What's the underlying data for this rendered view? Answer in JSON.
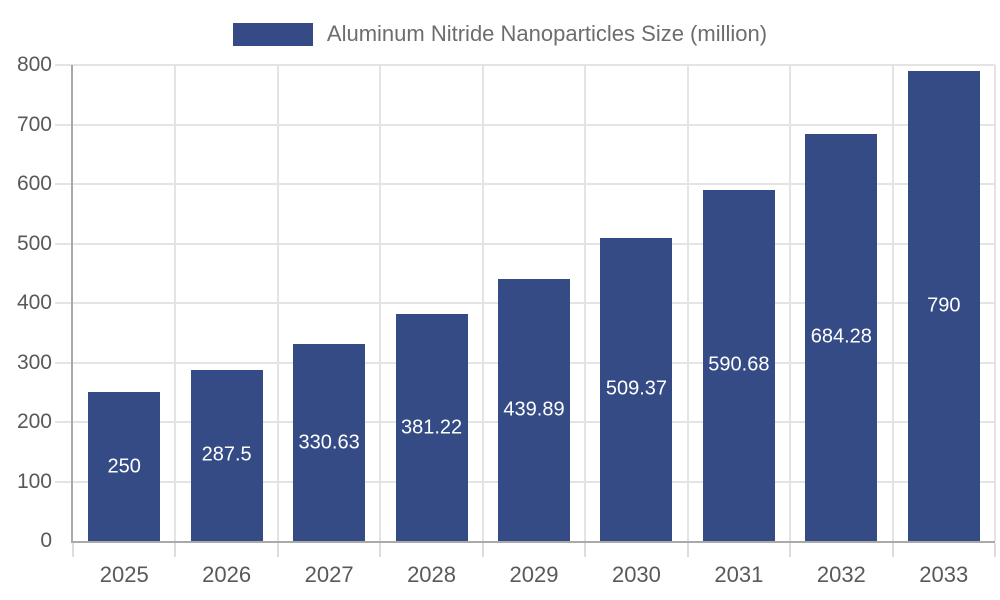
{
  "legend": {
    "label": "Aluminum Nitride Nanoparticles Size (million)",
    "swatch_color": "#354b86"
  },
  "chart_data": {
    "type": "bar",
    "title": "Aluminum Nitride Nanoparticles Size (million)",
    "categories": [
      "2025",
      "2026",
      "2027",
      "2028",
      "2029",
      "2030",
      "2031",
      "2032",
      "2033"
    ],
    "values": [
      250,
      287.5,
      330.63,
      381.22,
      439.89,
      509.37,
      590.68,
      684.28,
      790
    ],
    "xlabel": "",
    "ylabel": "",
    "ylim": [
      0,
      800
    ],
    "yticks": [
      0,
      100,
      200,
      300,
      400,
      500,
      600,
      700,
      800
    ],
    "grid": true,
    "legend_position": "top-center",
    "bar_color": "#354b86",
    "value_label_color": "#ffffff"
  },
  "colors": {
    "background": "#ffffff",
    "axis_line": "#a9a9a9",
    "gridline": "#e4e4e4",
    "x_tick": "#dcdcdc",
    "tick_label": "#595959",
    "legend_text": "#6d6d6d"
  }
}
